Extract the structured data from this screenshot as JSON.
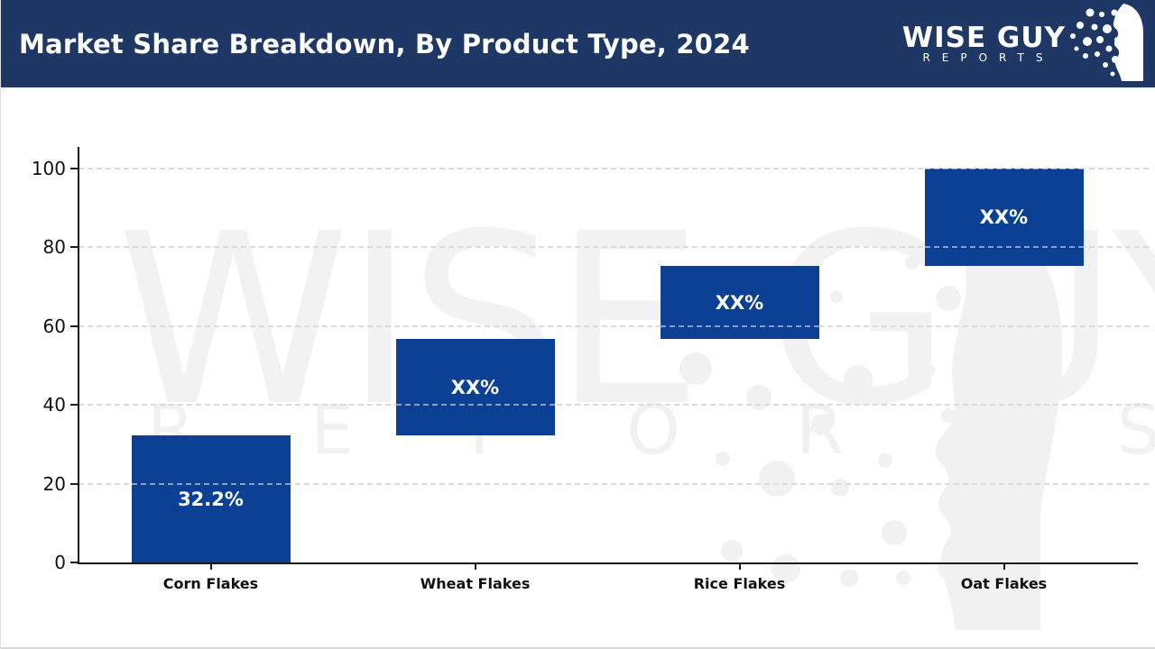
{
  "header": {
    "title": "Market Share Breakdown, By Product Type, 2024",
    "logo": {
      "line1": "WISE GUY",
      "line2": "REPORTS"
    }
  },
  "watermark": {
    "line1": "WISE GUY",
    "line2": "R E P O R T S"
  },
  "colors": {
    "header_bg": "#1F3765",
    "bar": "#0C4094",
    "grid": "#DBDBDB",
    "axis": "#1A1A1A",
    "bar_label": "#FFFFFF",
    "watermark": "#F2F2F2"
  },
  "chart_data": {
    "type": "bar",
    "subtype": "waterfall",
    "title": "Market Share Breakdown, By Product Type, 2024",
    "categories": [
      "Corn Flakes",
      "Wheat Flakes",
      "Rice Flakes",
      "Oat Flakes"
    ],
    "segments": [
      {
        "category": "Corn Flakes",
        "start": 0,
        "end": 32.2,
        "label": "32.2%"
      },
      {
        "category": "Wheat Flakes",
        "start": 32.2,
        "end": 56.8,
        "label": "XX%"
      },
      {
        "category": "Rice Flakes",
        "start": 56.8,
        "end": 75.2,
        "label": "XX%"
      },
      {
        "category": "Oat Flakes",
        "start": 75.2,
        "end": 100,
        "label": "XX%"
      }
    ],
    "yticks": [
      0,
      20,
      40,
      60,
      80,
      100
    ],
    "ylim": [
      0,
      100
    ],
    "xlabel": "",
    "ylabel": "",
    "grid": "horizontal-dashed",
    "legend": "none"
  }
}
